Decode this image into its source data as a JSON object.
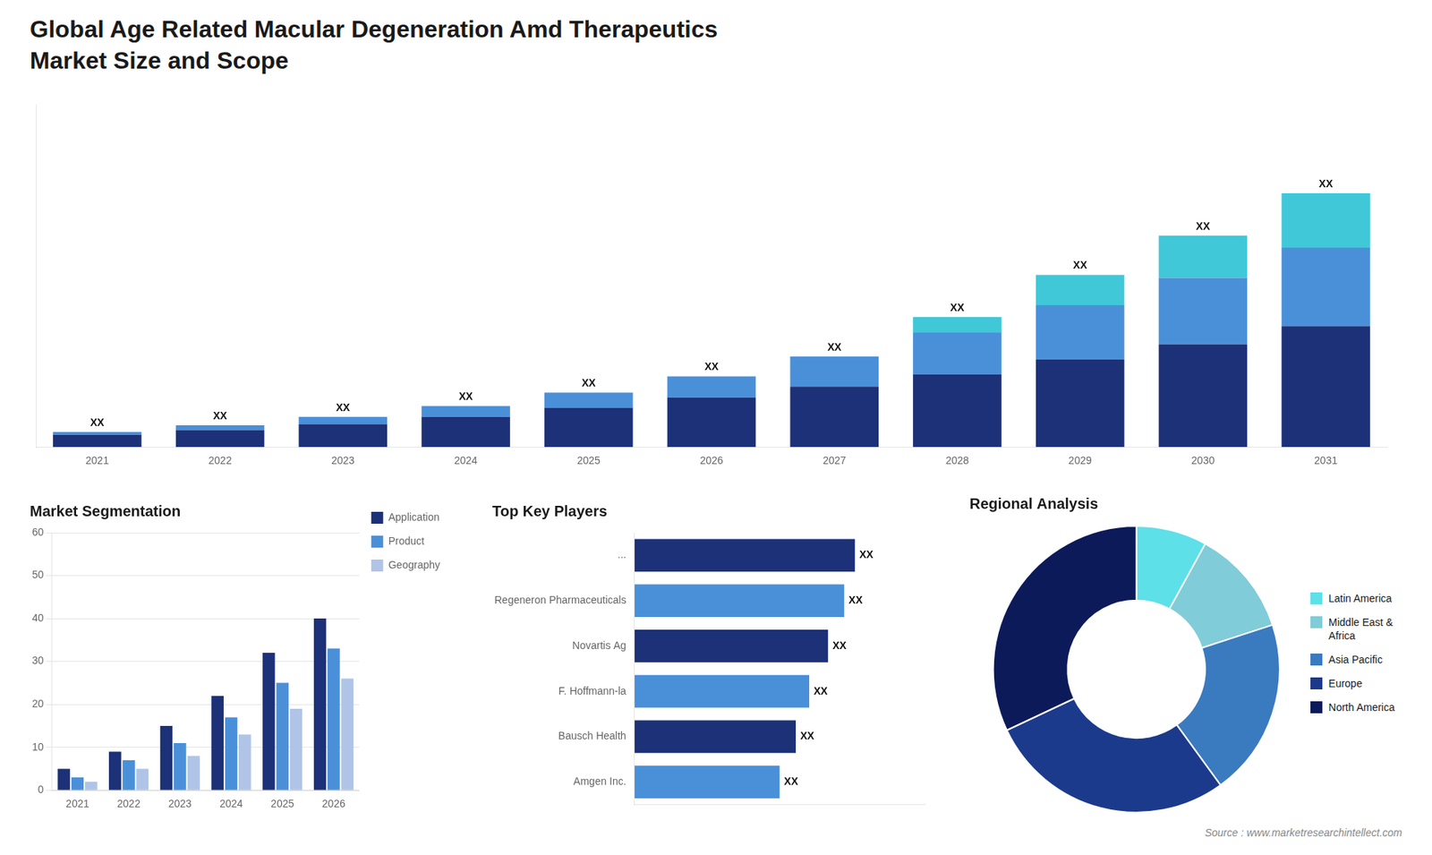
{
  "chart_data": [
    {
      "type": "bar",
      "title": "Global Age Related Macular Degeneration Amd Therapeutics",
      "subtitle": "Market Size and Scope",
      "categories": [
        "2021",
        "2022",
        "2023",
        "2024",
        "2025",
        "2026",
        "2027",
        "2028",
        "2029",
        "2030",
        "2031"
      ],
      "stacked": true,
      "series": [
        {
          "color": "#1c3177",
          "values": [
            2.0,
            2.8,
            3.8,
            5.0,
            6.5,
            8.2,
            10.0,
            12.0,
            14.5,
            17.0,
            20.0
          ]
        },
        {
          "color": "#4a90d9",
          "values": [
            0.5,
            0.8,
            1.2,
            1.8,
            2.5,
            3.5,
            5.0,
            7.0,
            9.0,
            11.0,
            13.0
          ]
        },
        {
          "color": "#40c8d8",
          "values": [
            0.0,
            0.0,
            0.0,
            0.0,
            0.0,
            0.0,
            0.0,
            2.5,
            5.0,
            7.0,
            9.0
          ],
          "value_labels": [
            "XX",
            "XX",
            "XX",
            "XX",
            "XX",
            "XX",
            "XX",
            "XX",
            "XX",
            "XX",
            "XX"
          ]
        }
      ],
      "ylim": [
        0,
        56.7
      ],
      "tick_labels": "x",
      "grid": false,
      "data_labels": true
    },
    {
      "type": "bar",
      "title": "Market Segmentation",
      "categories": [
        "2021",
        "2022",
        "2023",
        "2024",
        "2025",
        "2026"
      ],
      "series": [
        {
          "name": "Application",
          "color": "#1c3177",
          "values": [
            5,
            9,
            15,
            22,
            32,
            40
          ]
        },
        {
          "name": "Product",
          "color": "#4a90d9",
          "values": [
            3,
            7,
            11,
            17,
            25,
            33
          ]
        },
        {
          "name": "Geography",
          "color": "#b0c4e8",
          "values": [
            2,
            5,
            8,
            13,
            19,
            26
          ]
        }
      ],
      "ylim": [
        0,
        60
      ],
      "yticks": [
        0,
        10,
        20,
        30,
        40,
        50,
        60
      ],
      "grid": true,
      "legend": "right"
    },
    {
      "type": "bar",
      "orientation": "horizontal",
      "title": "Top Key Players",
      "categories": [
        "...",
        "Regeneron Pharmaceuticals",
        "Novartis Ag",
        "F. Hoffmann-la",
        "Bausch Health",
        "Amgen Inc."
      ],
      "values": [
        0.82,
        0.78,
        0.72,
        0.65,
        0.6,
        0.54
      ],
      "value_labels": [
        "XX",
        "XX",
        "XX",
        "XX",
        "XX",
        "XX"
      ],
      "colors": [
        "#1c3177",
        "#4a90d9",
        "#1c3177",
        "#4a90d9",
        "#1c3177",
        "#4a90d9"
      ],
      "xlim": [
        0,
        1.08
      ],
      "tick_labels": "y",
      "grid": false,
      "data_labels": true
    },
    {
      "type": "doughnut",
      "title": "Regional Analysis",
      "categories": [
        "Latin America",
        "Middle East &\nAfrica",
        "Asia Pacific",
        "Europe",
        "North America"
      ],
      "values": [
        8,
        12,
        20,
        28,
        32
      ],
      "colors": [
        "#5de0e8",
        "#80ccd8",
        "#3a7abf",
        "#1c3a8c",
        "#0d1a5a"
      ],
      "legend": "right",
      "annotations": [
        "Source : www.marketresearchintellect.com"
      ]
    }
  ]
}
